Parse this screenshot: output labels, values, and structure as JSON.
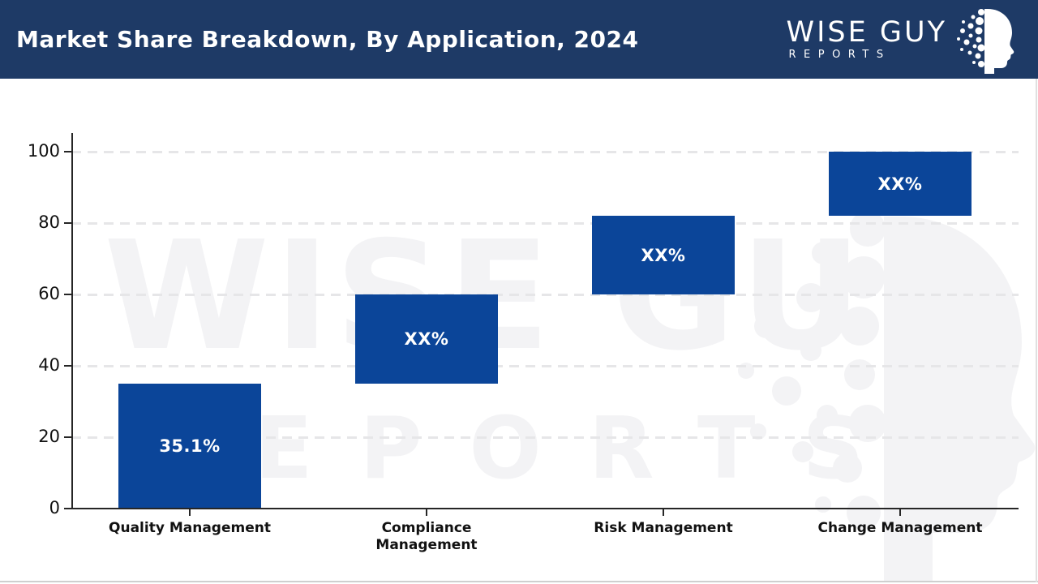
{
  "header": {
    "title": "Market Share Breakdown, By Application, 2024",
    "logo": {
      "brand": "WISE GUY",
      "sub": "REPORTS"
    }
  },
  "watermark": {
    "line1": "WISE GU",
    "line2": "REPORTS"
  },
  "chart_data": {
    "type": "bar",
    "subtype": "waterfall",
    "title": "Market Share Breakdown, By Application, 2024",
    "categories": [
      "Quality Management",
      "Compliance\nManagement",
      "Risk Management",
      "Change Management"
    ],
    "bars": [
      {
        "category": "Quality Management",
        "start": 0,
        "end": 35.1,
        "label": "35.1%"
      },
      {
        "category": "Compliance\nManagement",
        "start": 35.1,
        "end": 60,
        "label": "XX%"
      },
      {
        "category": "Risk Management",
        "start": 60,
        "end": 82,
        "label": "XX%"
      },
      {
        "category": "Change Management",
        "start": 82,
        "end": 100,
        "label": "XX%"
      }
    ],
    "ylim": [
      0,
      100
    ],
    "yticks": [
      0,
      20,
      40,
      60,
      80,
      100
    ],
    "xlabel": "",
    "ylabel": "",
    "grid": "horizontal-dashed",
    "legend": "none"
  },
  "colors": {
    "header_bg": "#1e3a66",
    "bar": "#0b4599",
    "bar_label": "#ffffff",
    "grid": "#e6e6e8",
    "axis": "#262626",
    "tick_text": "#111111",
    "watermark": "#f3f3f5"
  }
}
